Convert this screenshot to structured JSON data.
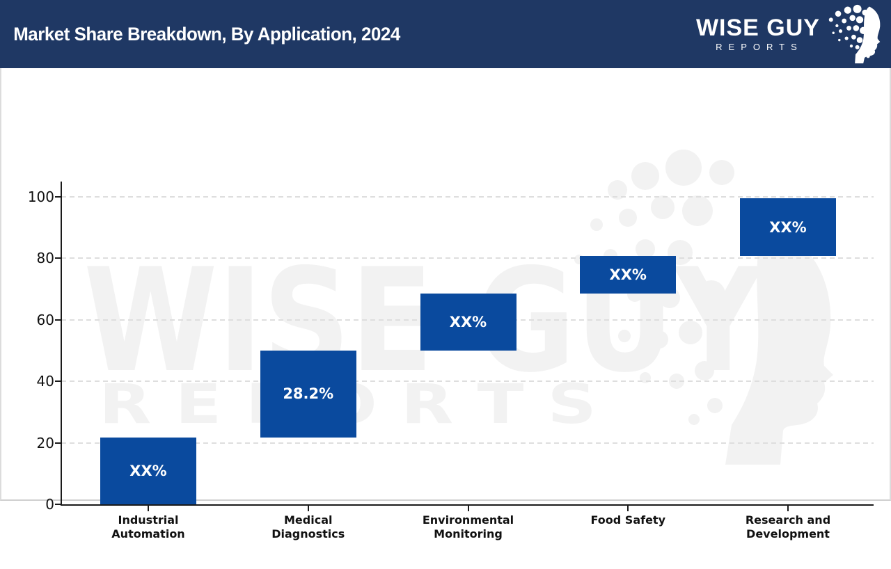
{
  "header": {
    "title": "Market Share Breakdown, By Application, 2024",
    "logo_line1": "WISE GUY",
    "logo_line2": "REPORTS",
    "bg_color": "#1f3864"
  },
  "watermark": {
    "line1": "WISE GUY",
    "line2": "R E P O R T S",
    "color": "#f2f2f2"
  },
  "chart_data": {
    "type": "bar",
    "subtype": "waterfall-floating-segments",
    "title": "",
    "xlabel": "",
    "ylabel": "",
    "categories": [
      "Industrial Automation",
      "Medical Diagnostics",
      "Environmental Monitoring",
      "Food Safety",
      "Research and Development"
    ],
    "category_lines": [
      [
        "Industrial",
        "Automation"
      ],
      [
        "Medical",
        "Diagnostics"
      ],
      [
        "Environmental",
        "Monitoring"
      ],
      [
        "Food Safety"
      ],
      [
        "Research and",
        "Development"
      ]
    ],
    "segments": [
      {
        "label": "XX%",
        "start": 0,
        "end": 21.8,
        "value": 21.8
      },
      {
        "label": "28.2%",
        "start": 21.8,
        "end": 50.0,
        "value": 28.2
      },
      {
        "label": "XX%",
        "start": 50.0,
        "end": 68.6,
        "value": 18.6
      },
      {
        "label": "XX%",
        "start": 68.6,
        "end": 80.8,
        "value": 12.2
      },
      {
        "label": "XX%",
        "start": 80.8,
        "end": 99.5,
        "value": 18.7
      }
    ],
    "yticks": [
      0,
      20,
      40,
      60,
      80,
      100
    ],
    "ylim": [
      0,
      105
    ],
    "grid": "horizontal-dashed",
    "legend": "none",
    "bar_color": "#0a4a9e",
    "bar_label_color": "#ffffff",
    "axis_color": "#1a1a1a",
    "grid_color": "#dedede"
  }
}
